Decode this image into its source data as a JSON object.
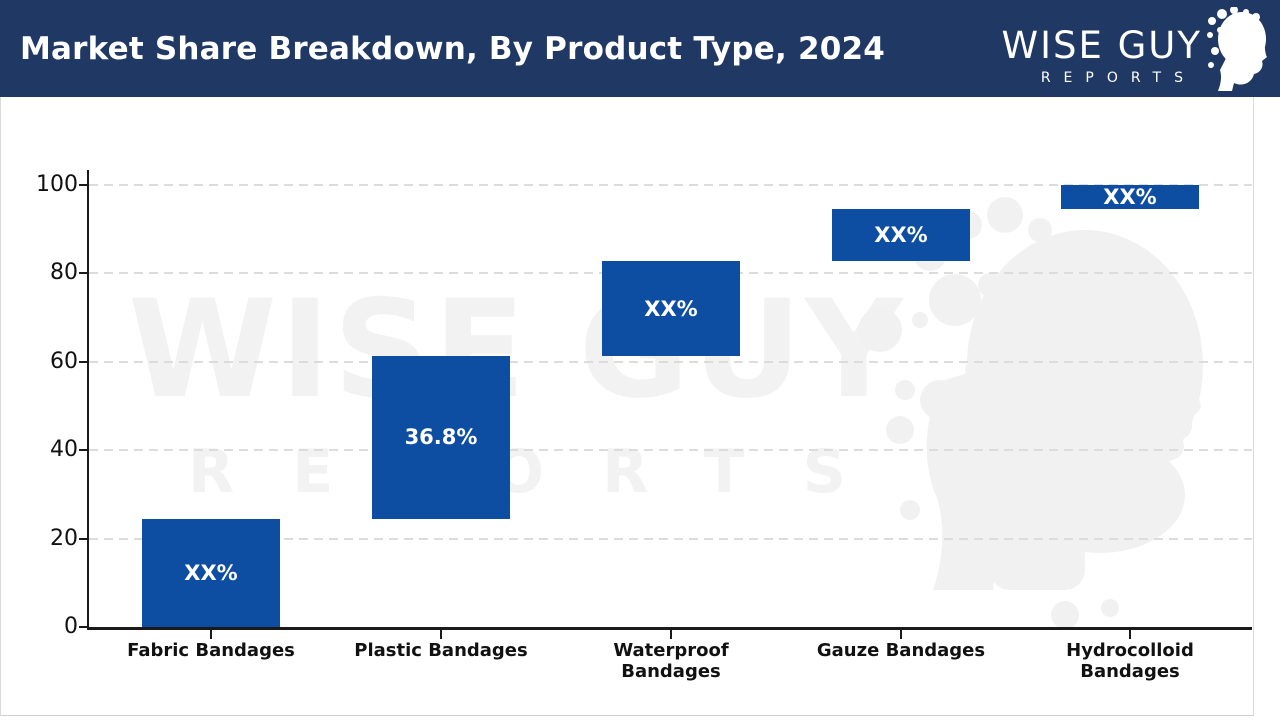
{
  "header": {
    "title": "Market Share Breakdown, By Product Type, 2024",
    "logo_line1": "WISE GUY",
    "logo_line2": "REPORTS"
  },
  "watermark": {
    "line1": "WISE GUY",
    "line2": "REPORTS"
  },
  "colors": {
    "header_bg": "#1f3864",
    "bar": "#0d4da2",
    "bar_label": "#ffffff",
    "grid": "#dcdcdc",
    "axis": "#1a1a1a",
    "watermark": "#f2f2f2"
  },
  "chart_data": {
    "type": "bar",
    "subtype": "waterfall",
    "title": "Market Share Breakdown, By Product Type, 2024",
    "categories": [
      "Fabric Bandages",
      "Plastic Bandages",
      "Waterproof Bandages",
      "Gauze Bandages",
      "Hydrocolloid Bandages"
    ],
    "segments": [
      {
        "category": "Fabric Bandages",
        "start": 0,
        "end": 24.5,
        "label": "XX%"
      },
      {
        "category": "Plastic Bandages",
        "start": 24.5,
        "end": 61.3,
        "label": "36.8%"
      },
      {
        "category": "Waterproof Bandages",
        "start": 61.3,
        "end": 82.8,
        "label": "XX%"
      },
      {
        "category": "Gauze Bandages",
        "start": 82.8,
        "end": 94.5,
        "label": "XX%"
      },
      {
        "category": "Hydrocolloid Bandages",
        "start": 94.5,
        "end": 100,
        "label": "XX%"
      }
    ],
    "xlabel": "",
    "ylabel": "",
    "ylim": [
      0,
      100
    ],
    "yticks": [
      0,
      20,
      40,
      60,
      80,
      100
    ],
    "grid": "horizontal dashed",
    "legend": "none"
  }
}
